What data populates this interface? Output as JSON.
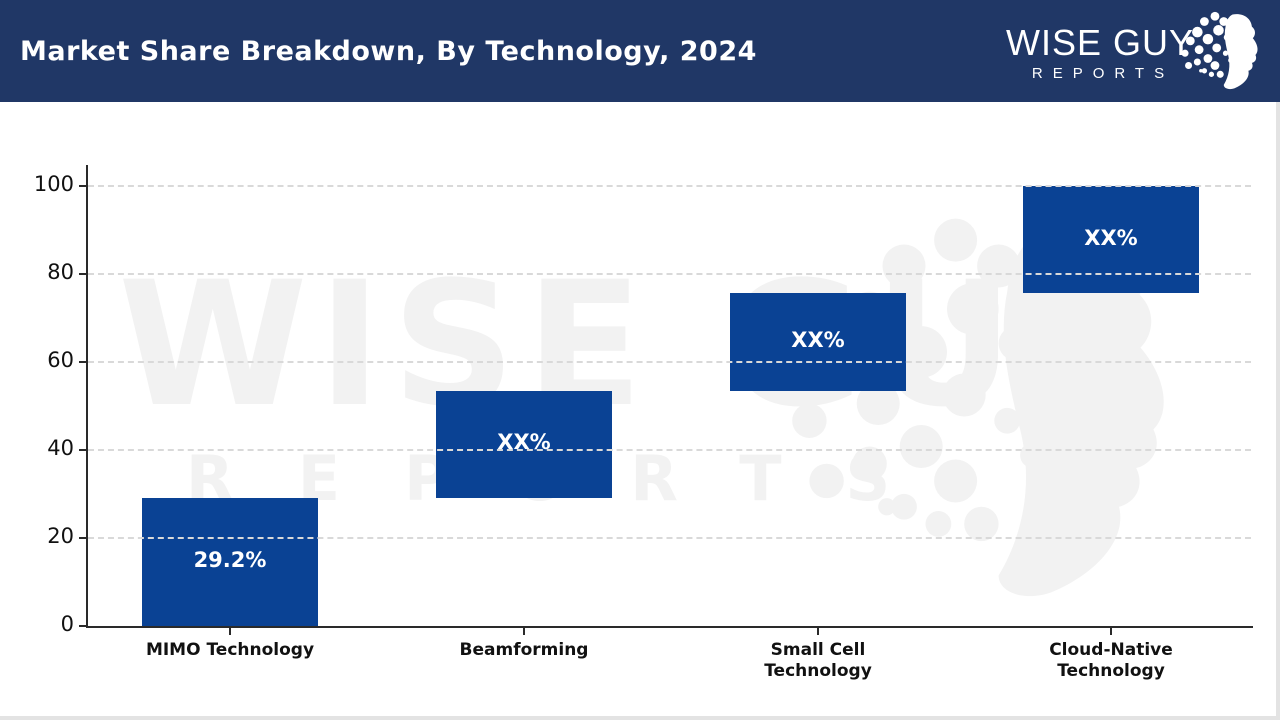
{
  "header": {
    "title": "Market Share Breakdown, By Technology, 2024",
    "logo": {
      "line1": "WISE GUY",
      "line2": "REPORTS"
    }
  },
  "watermark": {
    "line1": "WISE GUY",
    "line2": "REPORTS"
  },
  "colors": {
    "header_bg": "#203766",
    "title_text": "#ffffff",
    "bar": "#0a4294",
    "value_label_text": "#ffffff",
    "gridline": "#d9d9d9",
    "axis": "#2a2a2a",
    "tick_label_text": "#111111",
    "watermark": "#f2f2f2",
    "edge_strip": "#e3e3e3"
  },
  "chart_data": {
    "type": "bar",
    "subtype": "waterfall",
    "title": "Market Share Breakdown, By Technology, 2024",
    "categories": [
      {
        "label": "MIMO Technology",
        "lines": [
          "MIMO Technology"
        ]
      },
      {
        "label": "Beamforming",
        "lines": [
          "Beamforming"
        ]
      },
      {
        "label": "Small Cell Technology",
        "lines": [
          "Small Cell",
          "Technology"
        ]
      },
      {
        "label": "Cloud-Native Technology",
        "lines": [
          "Cloud-Native",
          "Technology"
        ]
      }
    ],
    "segments": [
      {
        "start": 0,
        "end": 29.2,
        "label": "29.2%"
      },
      {
        "start": 29.2,
        "end": 53.4,
        "label": "XX%"
      },
      {
        "start": 53.4,
        "end": 75.6,
        "label": "XX%"
      },
      {
        "start": 75.6,
        "end": 100,
        "label": "XX%"
      }
    ],
    "xlabel": "",
    "ylabel": "",
    "ylim": [
      0,
      100
    ],
    "yticks": [
      0,
      20,
      40,
      60,
      80,
      100
    ],
    "grid": "horizontal-dashed",
    "legend": "none"
  }
}
